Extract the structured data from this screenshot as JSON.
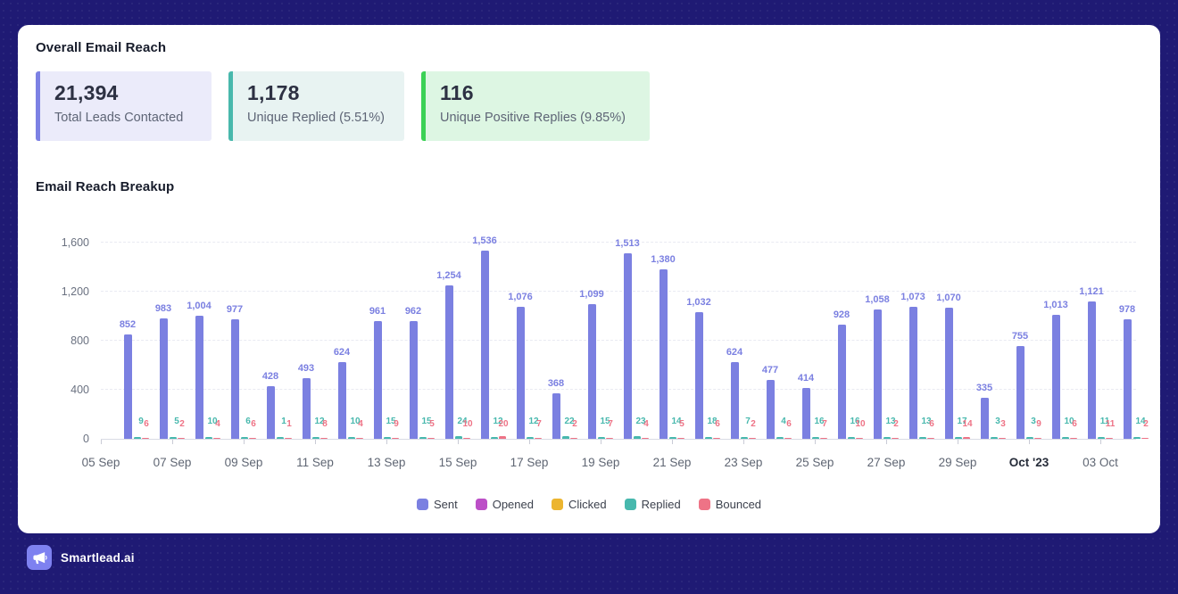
{
  "overview": {
    "title": "Overall Email Reach",
    "cards": [
      {
        "value": "21,394",
        "label": "Total Leads Contacted",
        "accent": "#7c81e4",
        "bg": "#ebebfa"
      },
      {
        "value": "1,178",
        "label": "Unique Replied (5.51%)",
        "accent": "#48b8ac",
        "bg": "#e8f3f2"
      },
      {
        "value": "116",
        "label": "Unique Positive Replies (9.85%)",
        "accent": "#3bd155",
        "bg": "#ddf6e3"
      }
    ]
  },
  "chart_section": {
    "title": "Email Reach Breakup"
  },
  "chart_data": {
    "type": "bar",
    "title": "Email Reach Breakup",
    "categories": [
      "05 Sep",
      "06 Sep",
      "07 Sep",
      "08 Sep",
      "09 Sep",
      "10 Sep",
      "11 Sep",
      "12 Sep",
      "13 Sep",
      "14 Sep",
      "15 Sep",
      "16 Sep",
      "17 Sep",
      "18 Sep",
      "19 Sep",
      "20 Sep",
      "21 Sep",
      "22 Sep",
      "23 Sep",
      "24 Sep",
      "25 Sep",
      "26 Sep",
      "27 Sep",
      "28 Sep",
      "29 Sep",
      "30 Sep",
      "01 Oct",
      "02 Oct",
      "03 Oct"
    ],
    "series": [
      {
        "name": "Sent",
        "color": "#7b80e1",
        "values": [
          852,
          983,
          1004,
          977,
          428,
          493,
          624,
          961,
          962,
          1254,
          1536,
          1076,
          368,
          1099,
          1513,
          1380,
          1032,
          624,
          477,
          414,
          928,
          1058,
          1073,
          1070,
          335,
          755,
          1013,
          1121,
          978
        ]
      },
      {
        "name": "Opened",
        "color": "#bc4fc7",
        "values": [
          0,
          0,
          0,
          0,
          0,
          0,
          0,
          0,
          0,
          0,
          0,
          0,
          0,
          0,
          0,
          0,
          0,
          0,
          0,
          0,
          0,
          0,
          0,
          0,
          0,
          0,
          0,
          0,
          0
        ]
      },
      {
        "name": "Clicked",
        "color": "#ecb52f",
        "values": [
          0,
          0,
          0,
          0,
          0,
          0,
          0,
          0,
          0,
          0,
          0,
          0,
          0,
          0,
          0,
          0,
          0,
          0,
          0,
          0,
          0,
          0,
          0,
          0,
          0,
          0,
          0,
          0,
          0
        ]
      },
      {
        "name": "Replied",
        "color": "#47b8ad",
        "values": [
          9,
          5,
          10,
          6,
          1,
          12,
          10,
          15,
          15,
          24,
          12,
          12,
          22,
          15,
          23,
          14,
          18,
          7,
          4,
          16,
          16,
          13,
          13,
          17,
          3,
          3,
          10,
          11,
          14
        ]
      },
      {
        "name": "Bounced",
        "color": "#ee7386",
        "values": [
          6,
          2,
          4,
          6,
          1,
          8,
          4,
          9,
          5,
          10,
          20,
          7,
          2,
          7,
          4,
          5,
          6,
          2,
          6,
          7,
          10,
          2,
          6,
          14,
          3,
          9,
          6,
          11,
          2
        ]
      }
    ],
    "x_tick_labels": [
      "05 Sep",
      "07 Sep",
      "09 Sep",
      "11 Sep",
      "13 Sep",
      "15 Sep",
      "17 Sep",
      "19 Sep",
      "21 Sep",
      "23 Sep",
      "25 Sep",
      "27 Sep",
      "29 Sep",
      "Oct '23",
      "03 Oct"
    ],
    "y_ticks": [
      0,
      400,
      800,
      1200,
      1600
    ],
    "ylim": [
      0,
      1600
    ],
    "grid": true,
    "legend_position": "bottom"
  },
  "footer": {
    "brand": "Smartlead.ai"
  }
}
